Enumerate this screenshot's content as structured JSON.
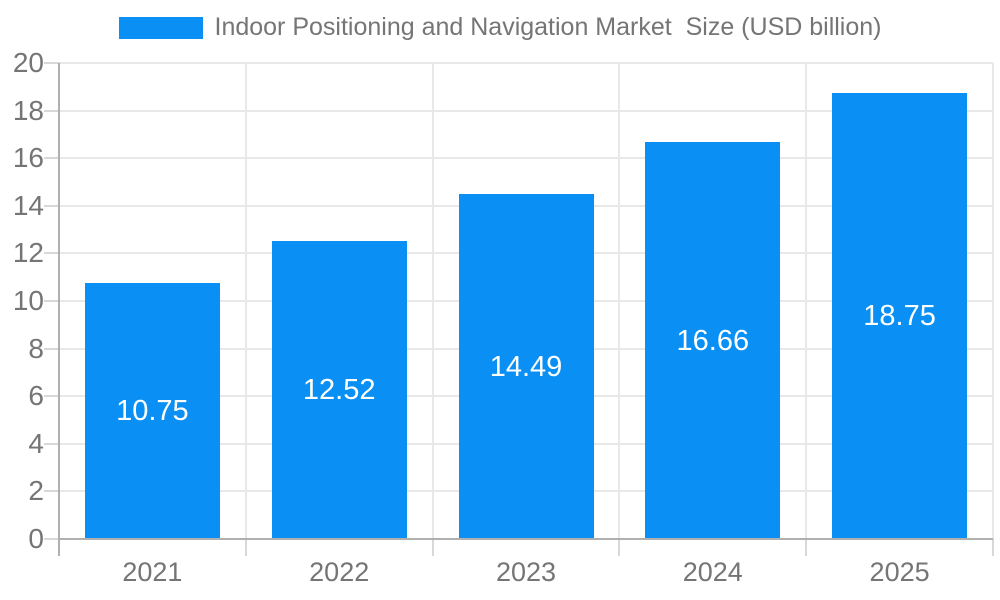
{
  "chart_data": {
    "type": "bar",
    "title": "Indoor Positioning and Navigation Market  Size (USD billion)",
    "legend_entries": [
      "Indoor Positioning and Navigation Market  Size (USD billion)"
    ],
    "legend_position": "top-center",
    "categories": [
      "2021",
      "2022",
      "2023",
      "2024",
      "2025"
    ],
    "values": [
      10.75,
      12.52,
      14.49,
      16.66,
      18.75
    ],
    "value_labels": [
      "10.75",
      "12.52",
      "14.49",
      "16.66",
      "18.75"
    ],
    "xlabel": "",
    "ylabel": "",
    "ylim": [
      0,
      20
    ],
    "ytick_step": 2,
    "ytick_labels": [
      "0",
      "2",
      "4",
      "6",
      "8",
      "10",
      "12",
      "14",
      "16",
      "18",
      "20"
    ],
    "grid": true
  },
  "colors": {
    "bar": "#0A90F5",
    "tick_label": "#757575",
    "legend_text": "#757575",
    "value_label": "#FFFFFF",
    "gridline": "#E8E8E8",
    "tick": "#D8D8D8",
    "axis_line": "#B0B0B0",
    "background": "#FFFFFF"
  }
}
